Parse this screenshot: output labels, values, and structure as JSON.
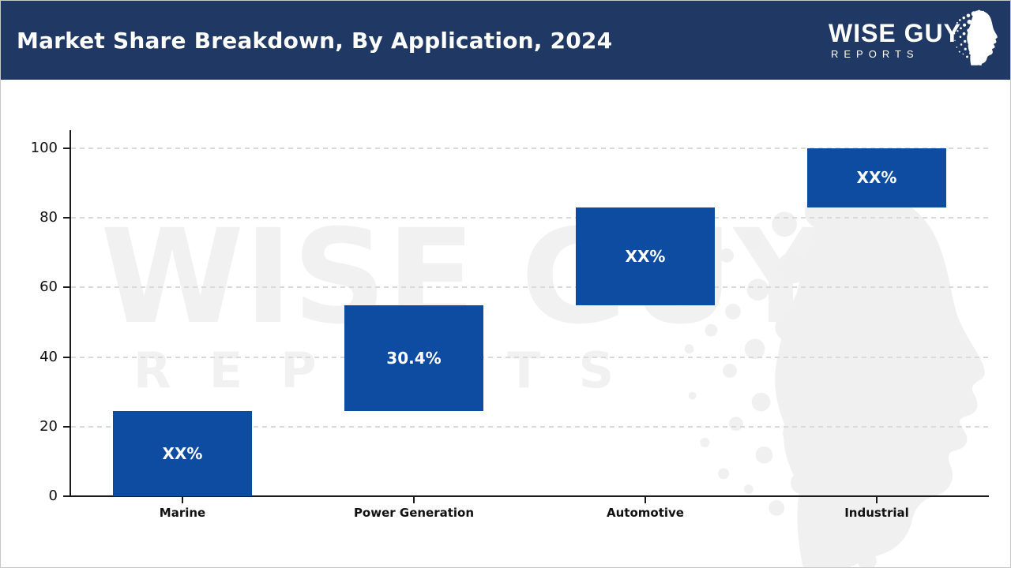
{
  "header": {
    "title": "Market Share Breakdown, By Application, 2024",
    "logo": {
      "line1": "WISE GUY",
      "line2": "REPORTS"
    }
  },
  "watermark": {
    "line1": "WISE GUY",
    "line2": "REPORTS"
  },
  "chart_data": {
    "type": "bar",
    "subtype": "floating-waterfall",
    "title": "Market Share Breakdown, By Application, 2024",
    "categories": [
      "Marine",
      "Power Generation",
      "Automotive",
      "Industrial"
    ],
    "bars": [
      {
        "category": "Marine",
        "start": 0,
        "end": 24.4,
        "label": "XX%"
      },
      {
        "category": "Power Generation",
        "start": 24.4,
        "end": 54.8,
        "label": "30.4%"
      },
      {
        "category": "Automotive",
        "start": 54.8,
        "end": 83.0,
        "label": "XX%"
      },
      {
        "category": "Industrial",
        "start": 83.0,
        "end": 100,
        "label": "XX%"
      }
    ],
    "xlabel": "",
    "ylabel": "",
    "ylim": [
      0,
      100
    ],
    "yticks": [
      0,
      20,
      40,
      60,
      80,
      100
    ],
    "grid": "horizontal dashed",
    "legend": "none",
    "bar_color": "#0d4ca1",
    "bar_label_color": "#ffffff"
  },
  "colors": {
    "header_bg": "#1f3864",
    "bar": "#0d4ca1",
    "watermark": "#f1f1f1",
    "axis": "#1a1a1a",
    "grid": "#dadada"
  }
}
